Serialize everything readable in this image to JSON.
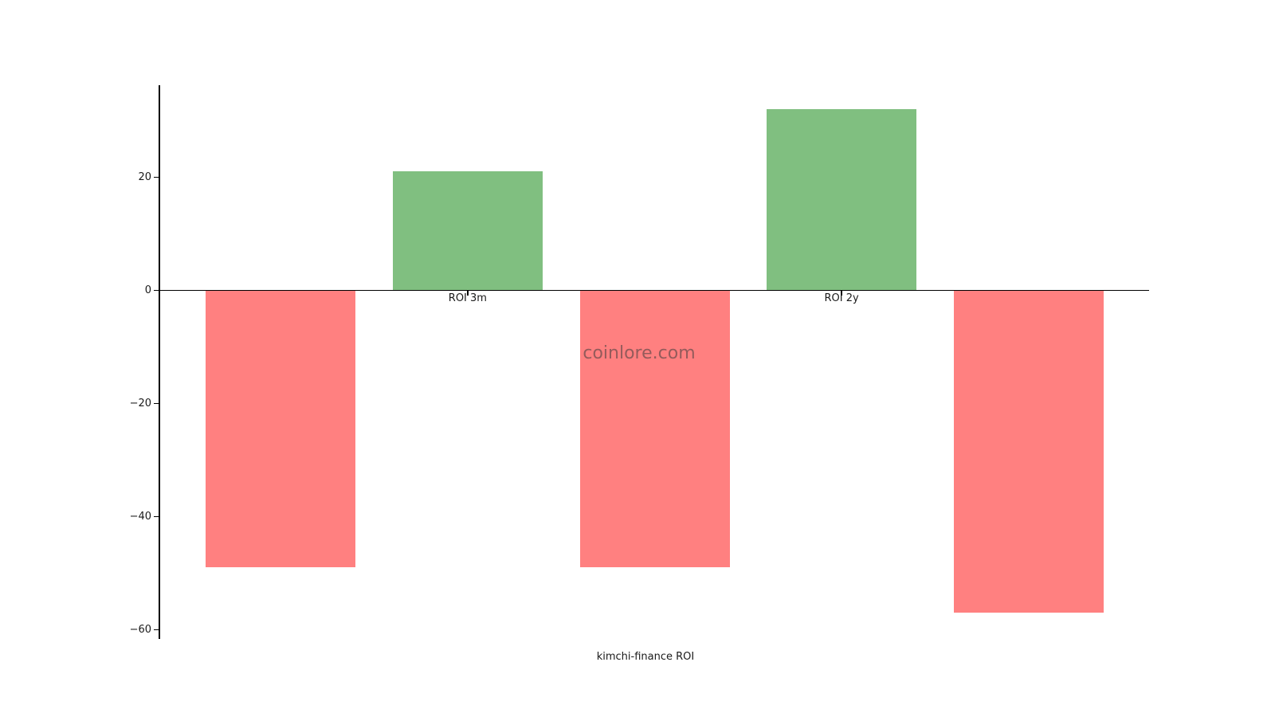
{
  "page": {
    "background_color": "#ffffff"
  },
  "watermark": {
    "text": "coinlore.com"
  },
  "chart_data": {
    "type": "bar",
    "title": "",
    "xlabel": "kimchi-finance ROI",
    "ylabel": "",
    "categories": [
      "",
      "ROI 3m",
      "",
      "ROI 2y",
      ""
    ],
    "values": [
      -49,
      21,
      -49,
      32,
      -57
    ],
    "bar_colors": {
      "positive": "#80bf80",
      "negative": "#ff8080"
    },
    "x_tick_labels": [
      {
        "bar_index": 1,
        "label": "ROI 3m"
      },
      {
        "bar_index": 3,
        "label": "ROI 2y"
      }
    ],
    "y_ticks": [
      {
        "value": 20,
        "label": "20"
      },
      {
        "value": 0,
        "label": "0"
      },
      {
        "value": -20,
        "label": "−20"
      },
      {
        "value": -40,
        "label": "−40"
      },
      {
        "value": -60,
        "label": "−60"
      }
    ],
    "ylim": [
      -61.8,
      36.4
    ],
    "grid": false,
    "legend": false,
    "axis_color": "#000000"
  }
}
